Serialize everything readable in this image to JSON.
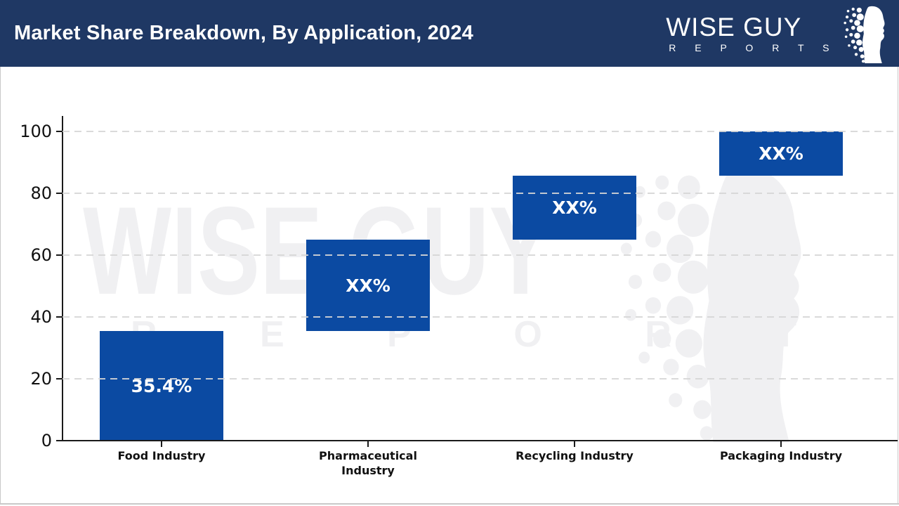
{
  "header": {
    "title": "Market Share Breakdown, By Application, 2024",
    "bg_color": "#1f3864"
  },
  "logo": {
    "line1": "WISE GUY",
    "line2": "R E P O R T S",
    "icon": "dotted-head-profile-icon",
    "color": "#ffffff"
  },
  "watermark": {
    "line1": "WISE GUY",
    "line2": "R E P O R T S",
    "icon": "dotted-head-profile-icon",
    "color": "#f0f0f2"
  },
  "chart_data": {
    "type": "bar",
    "variant": "floating-waterfall",
    "title": "Market Share Breakdown, By Application, 2024",
    "categories": [
      "Food Industry",
      "Pharmaceutical Industry",
      "Recycling Industry",
      "Packaging Industry"
    ],
    "series": [
      {
        "name": "Market share (%)",
        "segments": [
          {
            "from": 0,
            "to": 35.4
          },
          {
            "from": 35.4,
            "to": 65
          },
          {
            "from": 65,
            "to": 85.7
          },
          {
            "from": 85.7,
            "to": 100
          }
        ]
      }
    ],
    "bar_labels": [
      "35.4%",
      "XX%",
      "XX%",
      "XX%"
    ],
    "xlabel": "",
    "ylabel": "",
    "ylim": [
      0,
      100
    ],
    "yticks": [
      0,
      20,
      40,
      60,
      80,
      100
    ],
    "grid": "horizontal-dashed",
    "legend": "none",
    "bar_color": "#0b4aa2",
    "bar_label_color": "#ffffff",
    "axis_color": "#1a1a1a"
  }
}
